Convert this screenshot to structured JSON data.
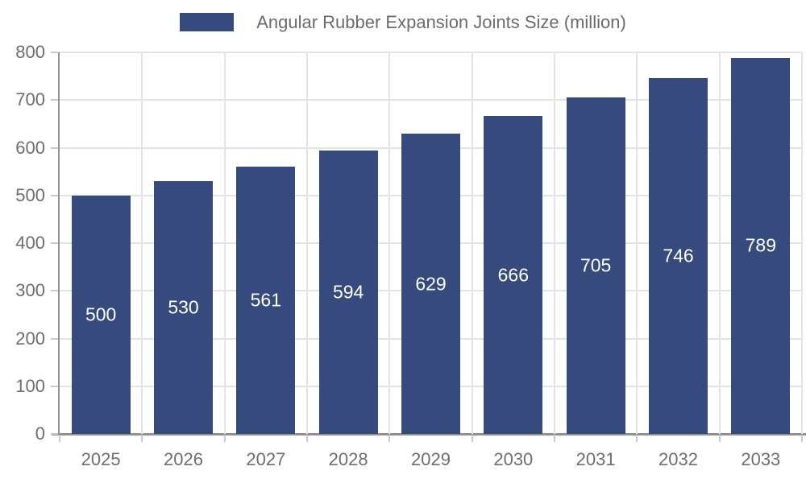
{
  "legend": {
    "label": "Angular Rubber Expansion Joints Size (million)"
  },
  "chart_data": {
    "type": "bar",
    "title": "Angular Rubber Expansion Joints Size (million)",
    "series_name": "Angular Rubber Expansion Joints Size (million)",
    "categories": [
      "2025",
      "2026",
      "2027",
      "2028",
      "2029",
      "2030",
      "2031",
      "2032",
      "2033"
    ],
    "values": [
      500,
      530,
      561,
      594,
      629,
      666,
      705,
      746,
      789
    ],
    "xlabel": "",
    "ylabel": "",
    "ylim": [
      0,
      800
    ],
    "ytick_step": 100,
    "yticks": [
      0,
      100,
      200,
      300,
      400,
      500,
      600,
      700,
      800
    ],
    "grid": true,
    "legend_position": "top-center",
    "value_labels": "inside-center",
    "colors": {
      "bar": "#364A7D",
      "value_label": "#FFFFFF",
      "axis_text": "#6E6E6E",
      "legend_text": "#6B6B6B",
      "gridline": "#E3E3E3",
      "axis_line": "#919191",
      "tick": "#C9C9C9",
      "background": "#FFFFFF"
    }
  }
}
